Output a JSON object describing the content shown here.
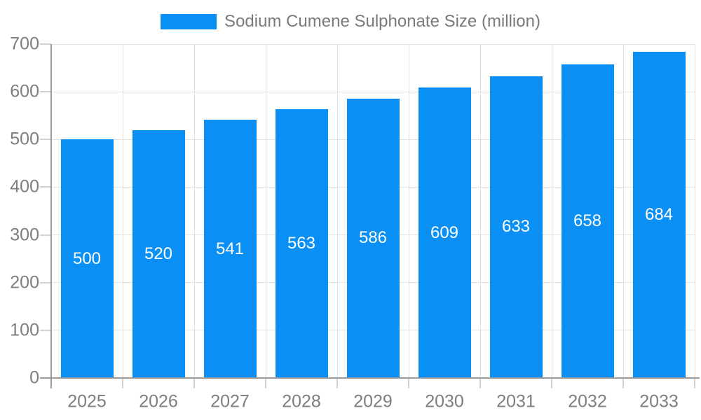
{
  "chart_data": {
    "type": "bar",
    "series_name": "Sodium Cumene Sulphonate Size (million)",
    "categories": [
      "2025",
      "2026",
      "2027",
      "2028",
      "2029",
      "2030",
      "2031",
      "2032",
      "2033"
    ],
    "values": [
      500,
      520,
      541,
      563,
      586,
      609,
      633,
      658,
      684
    ],
    "value_labels": [
      "500",
      "520",
      "541",
      "563",
      "586",
      "609",
      "633",
      "658",
      "684"
    ],
    "yticks": [
      0,
      100,
      200,
      300,
      400,
      500,
      600,
      700
    ],
    "ylim": [
      0,
      700
    ],
    "xlabel": "",
    "ylabel": "",
    "grid": true,
    "legend_position": "top-center",
    "value_label_position": "center-of-bar",
    "colors": {
      "bar": "#0a90f5",
      "grid": "#e1e1e1",
      "tick": "#d2d2d2",
      "axis": "#9b9b9b",
      "axis_text": "#7e7e7e",
      "legend_text": "#7a7a7a",
      "value_text": "#ffffff",
      "background": "#ffffff"
    }
  }
}
